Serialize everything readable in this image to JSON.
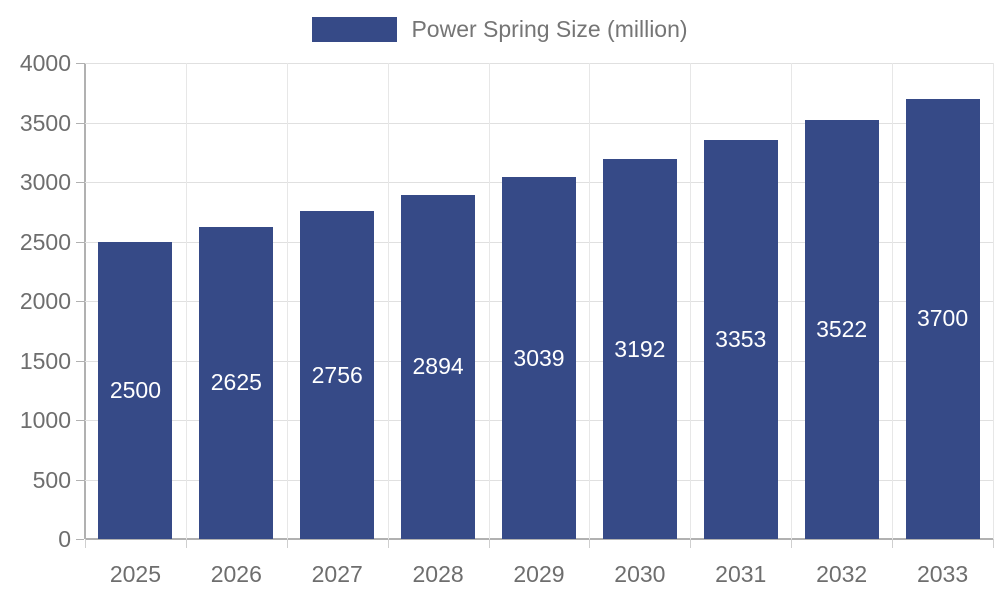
{
  "legend": {
    "label": "Power Spring Size (million)"
  },
  "colors": {
    "bar": "#364a87",
    "axis_line": "#b1b1b1",
    "grid_line": "#e0e0e0",
    "axis_label": "#6e6e6e",
    "legend_text": "#757575",
    "value_label": "#ffffff",
    "background": "#ffffff"
  },
  "chart_data": {
    "type": "bar",
    "title": "",
    "categories": [
      "2025",
      "2026",
      "2027",
      "2028",
      "2029",
      "2030",
      "2031",
      "2032",
      "2033"
    ],
    "series": [
      {
        "name": "Power Spring Size (million)",
        "values": [
          2500,
          2625,
          2756,
          2894,
          3039,
          3192,
          3353,
          3522,
          3700
        ]
      }
    ],
    "xlabel": "",
    "ylabel": "",
    "ylim": [
      0,
      4000
    ],
    "ytick_step": 500,
    "yticks": [
      0,
      500,
      1000,
      1500,
      2000,
      2500,
      3000,
      3500,
      4000
    ],
    "grid": true,
    "value_labels": "inside-center",
    "legend_position": "top-center"
  }
}
